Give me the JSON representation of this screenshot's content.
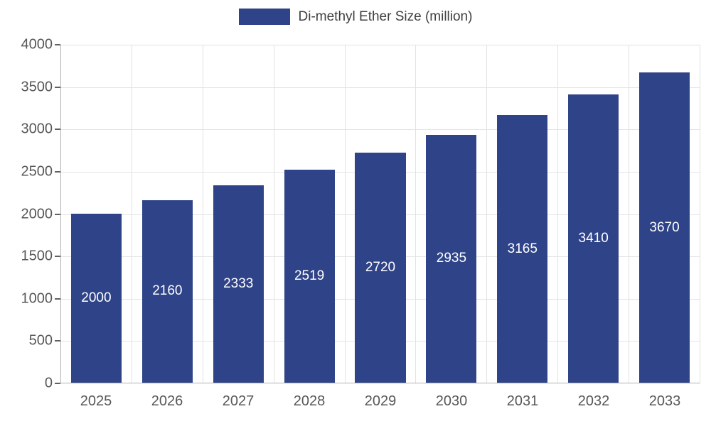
{
  "chart_data": {
    "type": "bar",
    "title": "Di-methyl Ether Size (million)",
    "categories": [
      "2025",
      "2026",
      "2027",
      "2028",
      "2029",
      "2030",
      "2031",
      "2032",
      "2033"
    ],
    "values": [
      2000,
      2160,
      2333,
      2519,
      2720,
      2935,
      3165,
      3410,
      3670
    ],
    "xlabel": "",
    "ylabel": "",
    "ylim": [
      0,
      4000
    ],
    "yticks": [
      0,
      500,
      1000,
      1500,
      2000,
      2500,
      3000,
      3500,
      4000
    ],
    "grid": true,
    "legend_position": "top",
    "bar_color": "#2f4388",
    "bar_label_color": "#ffffff",
    "axis_text_color": "#575757",
    "gridline_color": "#e3e3e3"
  }
}
